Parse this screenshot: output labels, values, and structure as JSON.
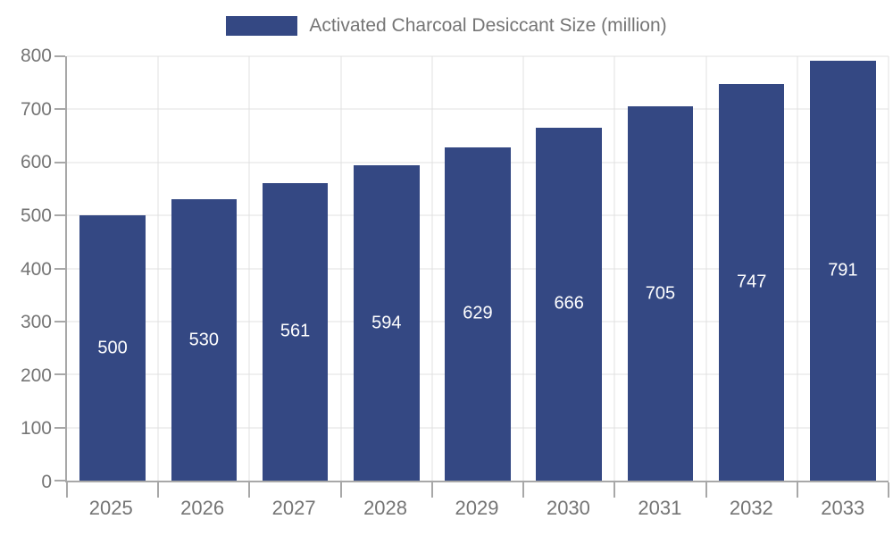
{
  "legend": {
    "label": "Activated Charcoal Desiccant Size (million)"
  },
  "chart_data": {
    "type": "bar",
    "title": "Activated Charcoal Desiccant Size (million)",
    "categories": [
      "2025",
      "2026",
      "2027",
      "2028",
      "2029",
      "2030",
      "2031",
      "2032",
      "2033"
    ],
    "values": [
      500,
      530,
      561,
      594,
      629,
      666,
      705,
      747,
      791
    ],
    "xlabel": "",
    "ylabel": "",
    "ylim": [
      0,
      800
    ],
    "yticks": [
      0,
      100,
      200,
      300,
      400,
      500,
      600,
      700,
      800
    ],
    "grid": true,
    "legend_position": "top-center",
    "value_labels": "centered-inside-bars"
  },
  "colors": {
    "bar": "#344883",
    "value_label": "#ffffff",
    "axis_line": "#a8a8a8",
    "grid_line": "#e0e0e0",
    "tick_text": "#757575",
    "background": "#ffffff"
  }
}
